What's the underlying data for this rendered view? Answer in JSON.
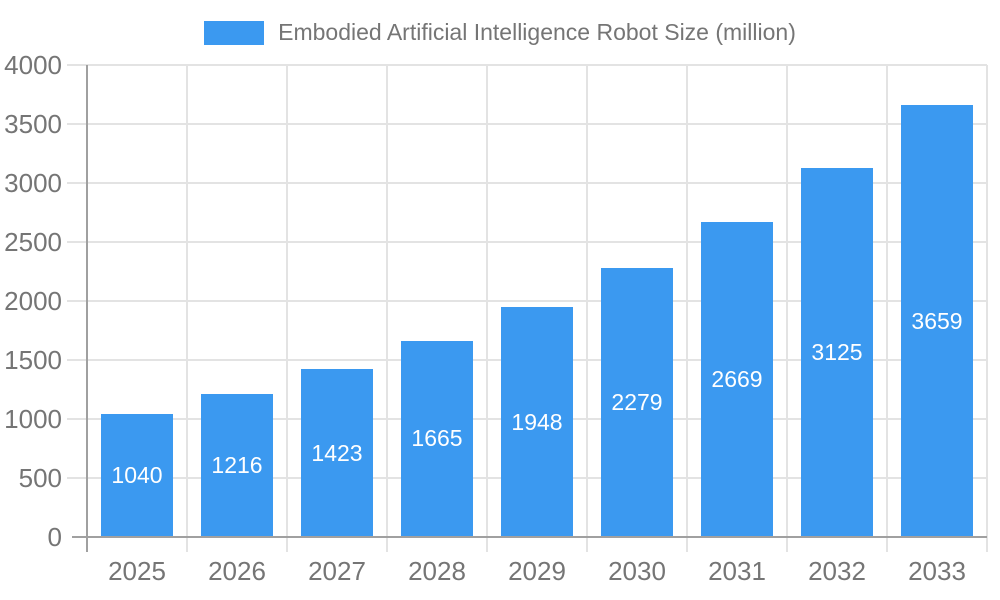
{
  "legend": {
    "label": "Embodied Artificial Intelligence Robot Size (million)"
  },
  "colors": {
    "bar": "#3B99F0",
    "grid": "#E3E3E3",
    "axis": "#A0A0A0",
    "text": "#757575",
    "value_label": "#FFFFFF",
    "background": "#FFFFFF"
  },
  "chart_data": {
    "type": "bar",
    "title": "Embodied Artificial Intelligence Robot Size (million)",
    "categories": [
      "2025",
      "2026",
      "2027",
      "2028",
      "2029",
      "2030",
      "2031",
      "2032",
      "2033"
    ],
    "values": [
      1040,
      1216,
      1423,
      1665,
      1948,
      2279,
      2669,
      3125,
      3659
    ],
    "xlabel": "",
    "ylabel": "",
    "ylim": [
      0,
      4000
    ],
    "yticks": [
      0,
      500,
      1000,
      1500,
      2000,
      2500,
      3000,
      3500,
      4000
    ],
    "grid": true,
    "legend_position": "top-center",
    "value_labels": "inside-center"
  }
}
